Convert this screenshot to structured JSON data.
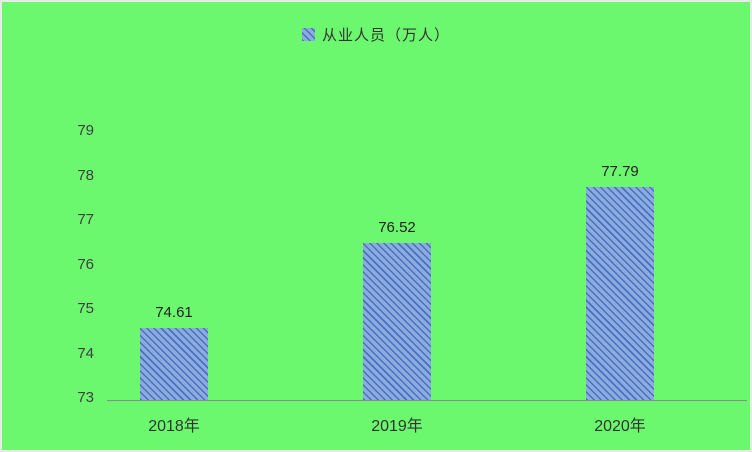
{
  "chart_data": {
    "type": "bar",
    "title": "从业人员（万人）",
    "categories": [
      "2018年",
      "2019年",
      "2020年"
    ],
    "values": [
      74.61,
      76.52,
      77.79
    ],
    "value_labels": [
      "74.61",
      "76.52",
      "77.79"
    ],
    "ylim": [
      73,
      79
    ],
    "yticks": [
      73,
      74,
      75,
      76,
      77,
      78,
      79
    ],
    "grid": false,
    "legend_position": "top",
    "colors": {
      "background": "#6bf86f",
      "bar_fill": "#8faadc",
      "bar_hatch": "#4472c4",
      "text": "#3f3f3f",
      "axis_line": "#8c8c8c"
    }
  }
}
